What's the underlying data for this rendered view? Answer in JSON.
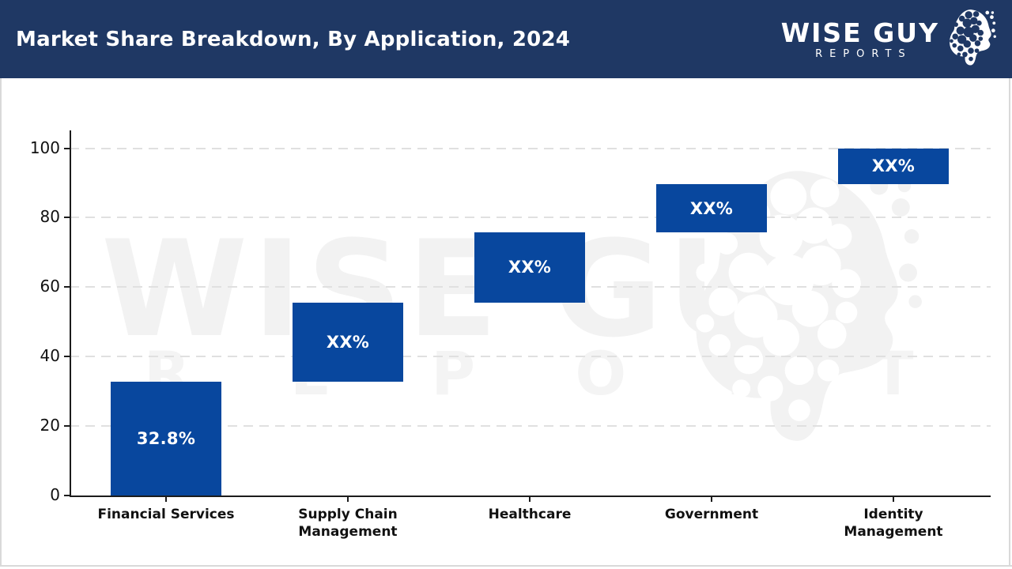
{
  "header": {
    "title": "Market Share Breakdown, By Application, 2024",
    "logo": {
      "line1": "WISE GUY",
      "line2": "REPORTS"
    }
  },
  "watermark": {
    "line1": "WISE GUY",
    "line2": "R E P O R T S"
  },
  "colors": {
    "header_bg": "#1f3864",
    "bar": "#08479e",
    "bar_label": "#ffffff",
    "grid": "#e0e0e0",
    "axis": "#1c1c1c",
    "watermark": "#f2f2f2",
    "frame": "#d9d9d9"
  },
  "chart_data": {
    "type": "bar",
    "subtype": "waterfall",
    "title": "Market Share Breakdown, By Application, 2024",
    "categories": [
      "Financial Services",
      "Supply Chain\nManagement",
      "Healthcare",
      "Government",
      "Identity\nManagement"
    ],
    "bars": [
      {
        "category": "Financial Services",
        "start": 0,
        "end": 32.8,
        "label": "32.8%"
      },
      {
        "category": "Supply Chain Management",
        "start": 32.8,
        "end": 55.6,
        "label": "XX%"
      },
      {
        "category": "Healthcare",
        "start": 55.6,
        "end": 75.7,
        "label": "XX%"
      },
      {
        "category": "Government",
        "start": 75.7,
        "end": 89.6,
        "label": "XX%"
      },
      {
        "category": "Identity Management",
        "start": 89.6,
        "end": 100.0,
        "label": "XX%"
      }
    ],
    "ylabel": "",
    "xlabel": "",
    "ylim": [
      0,
      105
    ],
    "yticks": [
      0,
      20,
      40,
      60,
      80,
      100
    ],
    "grid": "horizontal-dashed",
    "legend": "none"
  }
}
